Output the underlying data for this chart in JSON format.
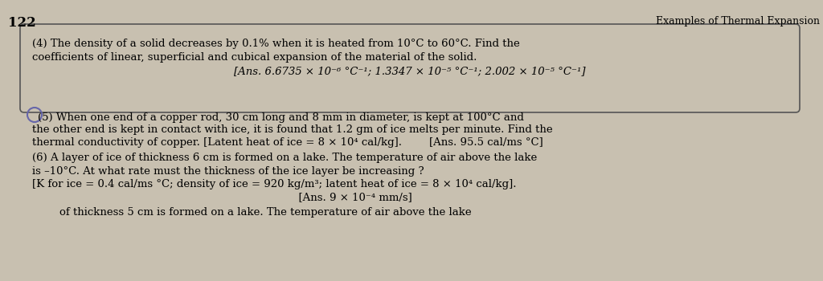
{
  "bg_color": "#c8c0b0",
  "page_number": "122",
  "header_right": "Examples of Thermal Expansion",
  "box_lines": [
    "(4) The density of a solid decreases by 0.1% when it is heated from 10°C to 60°C. Find the",
    "coefficients of linear, superficial and cubical expansion of the material of the solid.",
    "[Ans. 6.6735 × 10⁻⁶ °C⁻¹; 1.3347 × 10⁻⁵ °C⁻¹; 2.002 × 10⁻⁵ °C⁻¹]"
  ],
  "problem5_lines": [
    "(5) When one end of a copper rod, 30 cm long and 8 mm in diameter, is kept at 100°C and",
    "the other end is kept in contact with ice, it is found that 1.2 gm of ice melts per minute. Find the",
    "thermal conductivity of copper. [Latent heat of ice = 8 × 10⁴ cal/kg].        [Ans. 95.5 cal/ms °C]"
  ],
  "problem6_lines": [
    "(6) A layer of ice of thickness 6 cm is formed on a lake. The temperature of air above the lake",
    "is –10°C. At what rate must the thickness of the ice layer be increasing ?",
    "[K for ice = 0.4 cal/ms °C; density of ice = 920 kg/m³; latent heat of ice = 8 × 10⁴ cal/kg].",
    "                                                                              [Ans. 9 × 10⁻⁴ mm/s]"
  ],
  "bottom_line": "The temperature of air above the lake",
  "font_size": 9.5,
  "page_num_font_size": 12
}
